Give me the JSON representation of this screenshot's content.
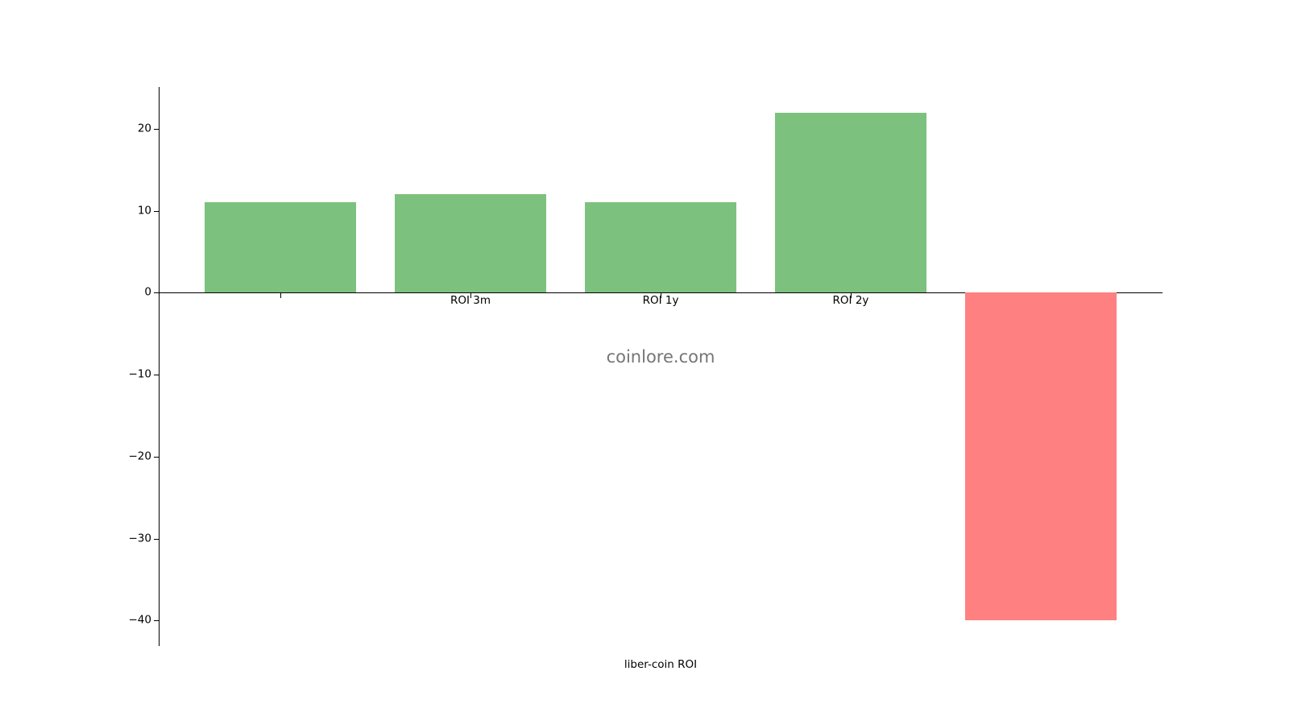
{
  "chart_data": {
    "type": "bar",
    "xlabel": "liber-coin ROI",
    "watermark": "coinlore.com",
    "categories": [
      "",
      "ROI 3m",
      "ROI 1y",
      "ROI 2y",
      ""
    ],
    "values": [
      11,
      12,
      11,
      22,
      -40
    ],
    "x_tick_visible": [
      true,
      true,
      true,
      true,
      false
    ],
    "yticks": [
      20,
      10,
      0,
      -10,
      -20,
      -30,
      -40
    ],
    "ytick_labels": [
      "20",
      "10",
      "0",
      "−10",
      "−20",
      "−30",
      "−40"
    ],
    "ylim": [
      -43.1,
      25.1
    ],
    "bar_width_fraction": 0.8,
    "grid": false,
    "legend": null,
    "colors": {
      "positive": "#7dc17e",
      "negative": "#ff8080",
      "axis": "#000000",
      "watermark_text": "#757575"
    }
  }
}
